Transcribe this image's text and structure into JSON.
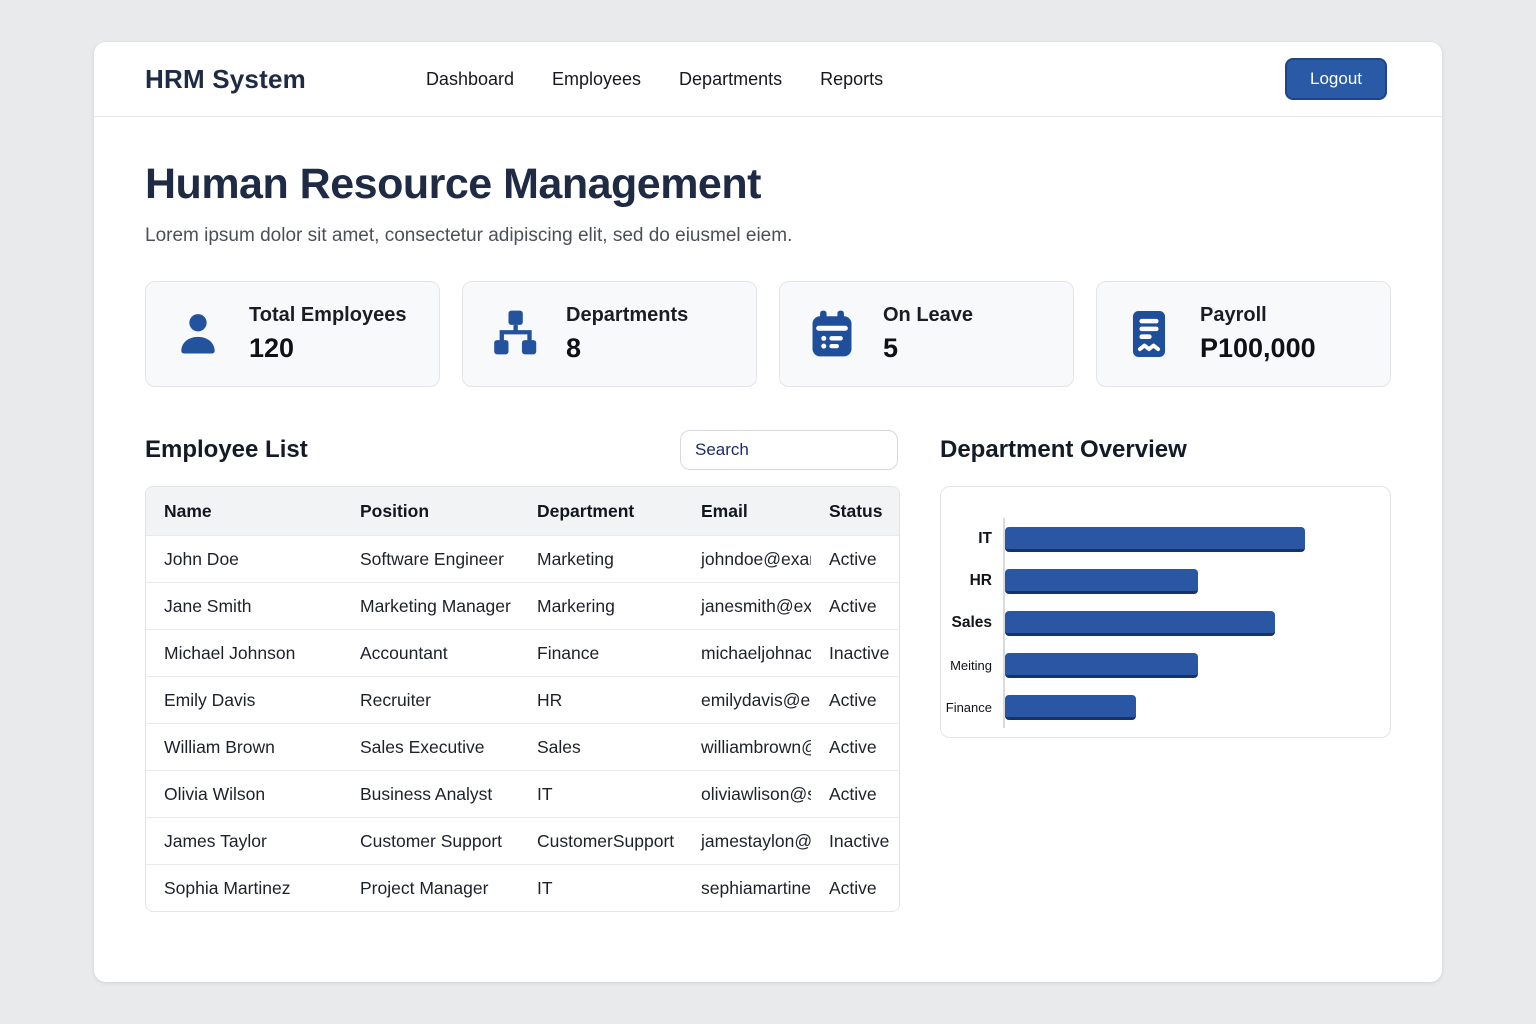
{
  "colors": {
    "accent_blue": "#2a56a4",
    "button_blue": "#2a5aa6",
    "active_green": "#15815a",
    "navy_text": "#1f2a44",
    "page_background": "#e9eaec"
  },
  "header": {
    "brand": "HRM System",
    "nav": [
      {
        "label": "Dashboard"
      },
      {
        "label": "Employees"
      },
      {
        "label": "Departments"
      },
      {
        "label": "Reports"
      }
    ],
    "logout_label": "Logout"
  },
  "hero": {
    "title": "Human Resource Management",
    "subtitle": "Lorem ipsum dolor sit amet, consectetur adipiscing elit, sed do eiusmel eiem."
  },
  "stats": [
    {
      "icon": "person-icon",
      "label": "Total Employees",
      "value": "120"
    },
    {
      "icon": "org-chart-icon",
      "label": "Departments",
      "value": "8"
    },
    {
      "icon": "calendar-icon",
      "label": "On Leave",
      "value": "5"
    },
    {
      "icon": "receipt-icon",
      "label": "Payroll",
      "value": "P100,000"
    }
  ],
  "employee_list": {
    "title": "Employee List",
    "search_placeholder": "Search",
    "columns": [
      "Name",
      "Position",
      "Department",
      "Email",
      "Status"
    ],
    "rows": [
      {
        "name": "John Doe",
        "position": "Software Engineer",
        "department": "Marketing",
        "email": "johndoe@exar",
        "status": "Active"
      },
      {
        "name": "Jane Smith",
        "position": "Marketing Manager",
        "department": "Markering",
        "email": "janesmith@ex",
        "status": "Active"
      },
      {
        "name": "Michael Johnson",
        "position": "Accountant",
        "department": "Finance",
        "email": "michaeljohnac",
        "status": "Inactive"
      },
      {
        "name": "Emily Davis",
        "position": "Recruiter",
        "department": "HR",
        "email": "emilydavis@e",
        "status": "Active"
      },
      {
        "name": "William Brown",
        "position": "Sales Executive",
        "department": "Sales",
        "email": "williambrown@",
        "status": "Active"
      },
      {
        "name": "Olivia Wilson",
        "position": "Business Analyst",
        "department": "IT",
        "email": "oliviawlison@s",
        "status": "Active"
      },
      {
        "name": "James Taylor",
        "position": "Customer Support",
        "department": "CustomerSupport",
        "email": "jamestaylon@s",
        "status": "Inactive"
      },
      {
        "name": "Sophia Martinez",
        "position": "Project Manager",
        "department": "IT",
        "email": "sephiamartine",
        "status": "Active"
      }
    ]
  },
  "department_overview": {
    "title": "Department Overview"
  },
  "chart_data": {
    "type": "bar",
    "orientation": "horizontal",
    "title": "Department Overview",
    "categories": [
      "IT",
      "HR",
      "Sales",
      "Meiting",
      "Finance"
    ],
    "values": [
      78,
      50,
      70,
      50,
      34
    ],
    "units": "percent of axis width (no numeric axis labels shown in chart)",
    "xlabel": "",
    "ylabel": "",
    "xlim": [
      0,
      100
    ],
    "grid": false,
    "legend": false,
    "bar_color": "#2a56a4"
  }
}
